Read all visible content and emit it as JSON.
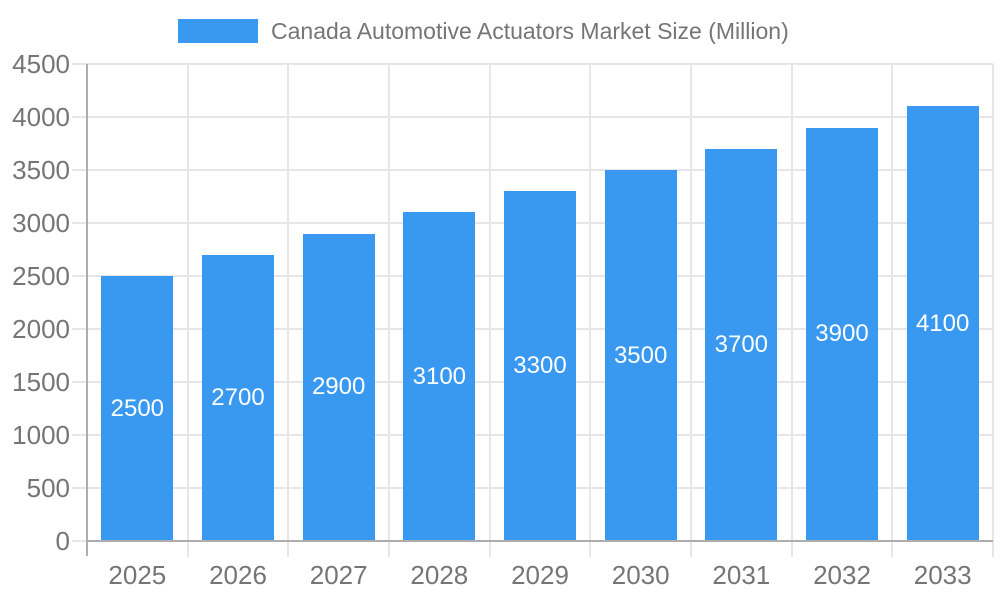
{
  "legend": {
    "label": "Canada Automotive Actuators Market Size (Million)",
    "swatch_color": "#3999F0"
  },
  "chart_data": {
    "type": "bar",
    "title": "Canada Automotive Actuators Market Size (Million)",
    "categories": [
      "2025",
      "2026",
      "2027",
      "2028",
      "2029",
      "2030",
      "2031",
      "2032",
      "2033"
    ],
    "values": [
      2500,
      2700,
      2900,
      3100,
      3300,
      3500,
      3700,
      3900,
      4100
    ],
    "bar_value_labels": [
      "2500",
      "2700",
      "2900",
      "3100",
      "3300",
      "3500",
      "3700",
      "3900",
      "4100"
    ],
    "xlabel": "",
    "ylabel": "",
    "ylim": [
      0,
      4500
    ],
    "ytick_step": 500,
    "yticks": [
      0,
      500,
      1000,
      1500,
      2000,
      2500,
      3000,
      3500,
      4000,
      4500
    ],
    "grid": "on",
    "legend_position": "top-center",
    "bar_color": "#3999F0",
    "bar_label_color": "#FFFFFF",
    "axis_text_color": "#757575",
    "grid_color": "#E6E6E6",
    "axis_line_color": "#ADADAD"
  }
}
